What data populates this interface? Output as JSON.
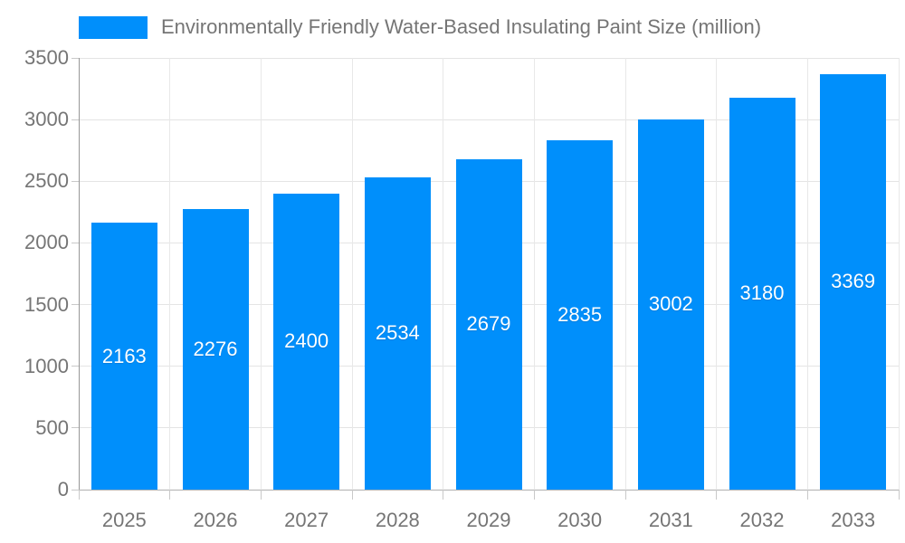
{
  "chart_data": {
    "type": "bar",
    "title": "Environmentally Friendly Water-Based Insulating Paint Size (million)",
    "categories": [
      "2025",
      "2026",
      "2027",
      "2028",
      "2029",
      "2030",
      "2031",
      "2032",
      "2033"
    ],
    "values": [
      2163,
      2276,
      2400,
      2534,
      2679,
      2835,
      3002,
      3180,
      3369
    ],
    "xlabel": "",
    "ylabel": "",
    "ylim": [
      0,
      3500
    ],
    "yticks": [
      0,
      500,
      1000,
      1500,
      2000,
      2500,
      3000,
      3500
    ],
    "grid": true,
    "legend_position": "top"
  },
  "style": {
    "bar_color": "#008FFB",
    "value_label_color": "#ffffff",
    "axis_label_color": "#757575",
    "legend_text_color": "#757575",
    "grid_color": "#e4e4e4",
    "grid_color_vertical": "#e8e8e8",
    "axis_line_color": "#979797",
    "baseline_color": "#b0b0b0",
    "tick_color": "#c9c9c9",
    "background_color": "#ffffff"
  }
}
